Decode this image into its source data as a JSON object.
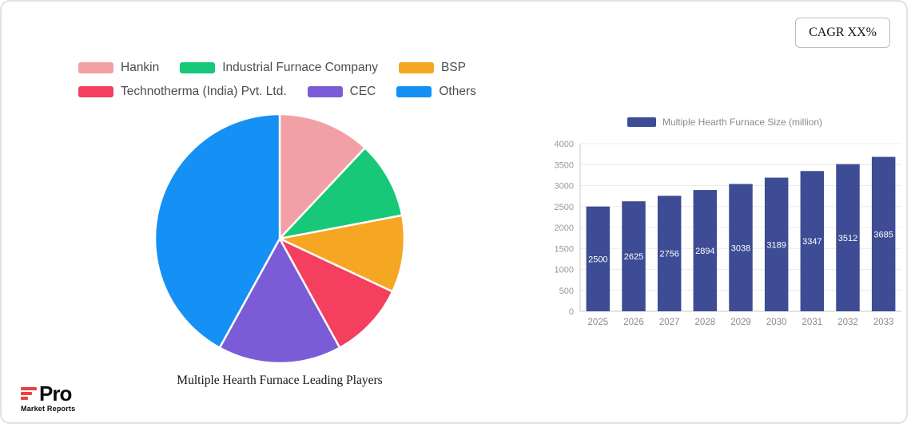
{
  "header": {
    "cagr_label": "CAGR XX%"
  },
  "logo": {
    "brand": "Pro",
    "subtitle": "Market Reports"
  },
  "chart_data": [
    {
      "type": "pie",
      "title": "Multiple Hearth Furnace Leading Players",
      "labels": [
        "Hankin",
        "Industrial Furnace Company",
        "BSP",
        "Technotherma (India) Pvt. Ltd.",
        "CEC",
        "Others"
      ],
      "values": [
        12,
        10,
        10,
        10,
        16,
        42
      ],
      "colors": [
        "#f2a0a5",
        "#16c878",
        "#f5a623",
        "#f43f5e",
        "#7b5cd6",
        "#1590f5"
      ],
      "legend_position": "top",
      "start_angle_deg": 0,
      "direction": "clockwise"
    },
    {
      "type": "bar",
      "series_name": "Multiple Hearth Furnace Size (million)",
      "categories": [
        "2025",
        "2026",
        "2027",
        "2028",
        "2029",
        "2030",
        "2031",
        "2032",
        "2033"
      ],
      "values": [
        2500,
        2625,
        2756,
        2894,
        3038,
        3189,
        3347,
        3512,
        3685
      ],
      "bar_color": "#3d4c94",
      "value_label_color": "#ffffff",
      "ylim": [
        0,
        4000
      ],
      "ytick_step": 500,
      "grid": true,
      "legend_position": "top"
    }
  ]
}
